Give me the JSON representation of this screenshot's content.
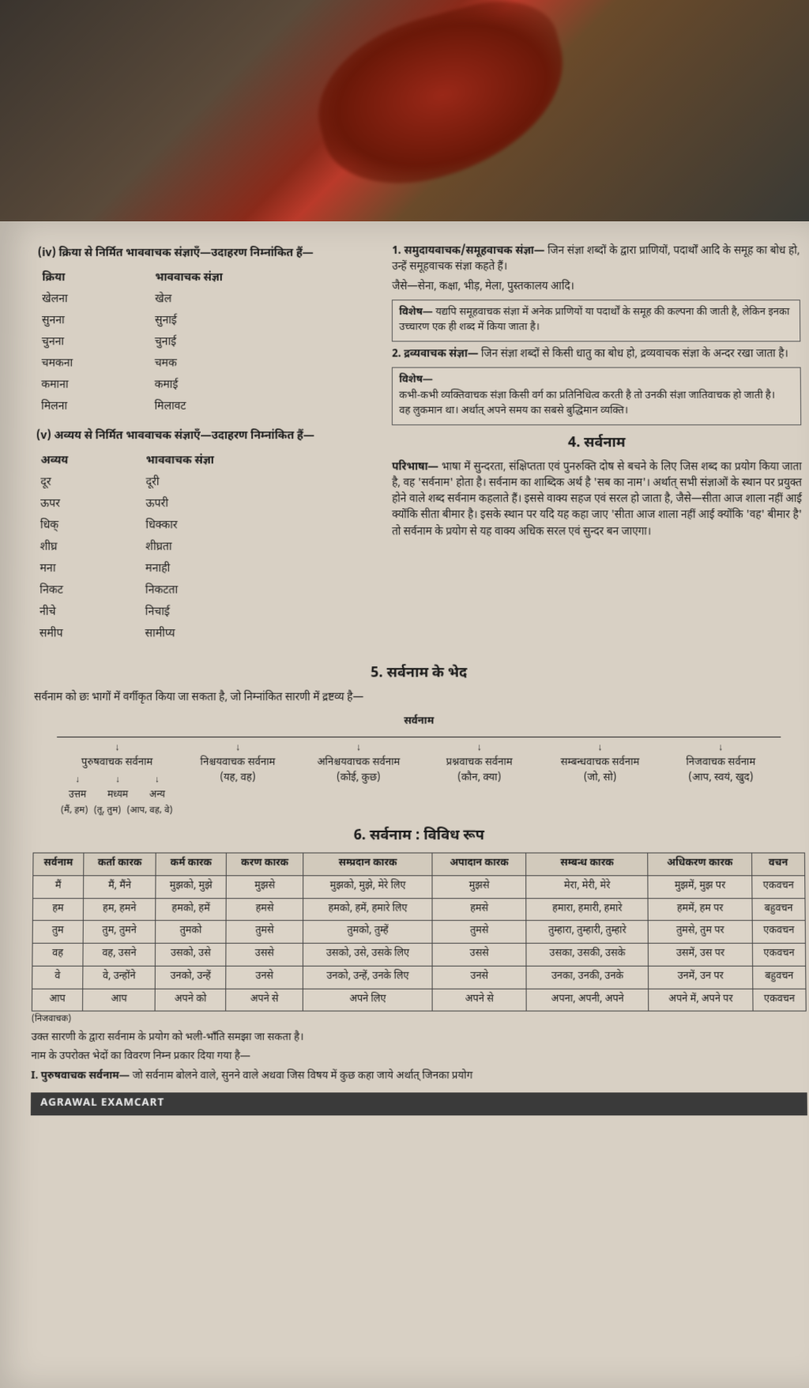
{
  "section_iv": {
    "heading": "(iv) क्रिया से निर्मित भाववाचक संज्ञाएँ—उदाहरण निम्नांकित हैं—",
    "col1": "क्रिया",
    "col2": "भाववाचक संज्ञा",
    "rows": [
      [
        "खेलना",
        "खेल"
      ],
      [
        "सुनना",
        "सुनाई"
      ],
      [
        "चुनना",
        "चुनाई"
      ],
      [
        "चमकना",
        "चमक"
      ],
      [
        "कमाना",
        "कमाई"
      ],
      [
        "मिलना",
        "मिलावट"
      ]
    ]
  },
  "section_v": {
    "heading": "(v) अव्यय से निर्मित भाववाचक संज्ञाएँ—उदाहरण निम्नांकित हैं—",
    "col1": "अव्यय",
    "col2": "भाववाचक संज्ञा",
    "rows": [
      [
        "दूर",
        "दूरी"
      ],
      [
        "ऊपर",
        "ऊपरी"
      ],
      [
        "धिक्",
        "धिक्कार"
      ],
      [
        "शीघ्र",
        "शीघ्रता"
      ],
      [
        "मना",
        "मनाही"
      ],
      [
        "निकट",
        "निकटता"
      ],
      [
        "नीचे",
        "निचाई"
      ],
      [
        "समीप",
        "सामीप्य"
      ]
    ]
  },
  "right": {
    "item1_head": "1. समुदायवाचक/समूहवाचक संज्ञा—",
    "item1_body": "जिन संज्ञा शब्दों के द्वारा प्राणियों, पदार्थों आदि के समूह का बोध हो, उन्हें समूहवाचक संज्ञा कहते हैं।",
    "item1_eg": "जैसे—सेना, कक्षा, भीड़, मेला, पुस्तकालय आदि।",
    "box1_head": "विशेष—",
    "box1_body": "यद्यपि समूहवाचक संज्ञा में अनेक प्राणियों या पदार्थों के समूह की कल्पना की जाती है, लेकिन इनका उच्चारण एक ही शब्द में किया जाता है।",
    "item2_head": "2. द्रव्यवाचक संज्ञा—",
    "item2_body": "जिन संज्ञा शब्दों से किसी धातु का बोध हो, द्रव्यवाचक संज्ञा के अन्दर रखा जाता है।",
    "box2_head": "विशेष—",
    "box2_body": "कभी-कभी व्यक्तिवाचक संज्ञा किसी वर्ग का प्रतिनिधित्व करती है तो उनकी संज्ञा जातिवाचक हो जाती है।",
    "box2_eg": "वह लुकमान था। अर्थात् अपने समय का सबसे बुद्धिमान व्यक्ति।",
    "sarvanam_head": "4. सर्वनाम",
    "sarvanam_def_label": "परिभाषा—",
    "sarvanam_def": "भाषा में सुन्दरता, संक्षिप्तता एवं पुनरुक्ति दोष से बचने के लिए जिस शब्द का प्रयोग किया जाता है, वह 'सर्वनाम' होता है। सर्वनाम का शाब्दिक अर्थ है 'सब का नाम'। अर्थात् सभी संज्ञाओं के स्थान पर प्रयुक्त होने वाले शब्द सर्वनाम कहलाते हैं। इससे वाक्य सहज एवं सरल हो जाता है, जैसे—सीता आज शाला नहीं आई क्योंकि सीता बीमार है। इसके स्थान पर यदि यह कहा जाए 'सीता आज शाला नहीं आई क्योंकि 'वह' बीमार है' तो सर्वनाम के प्रयोग से यह वाक्य अधिक सरल एवं सुन्दर बन जाएगा।"
  },
  "sec5": {
    "head": "5. सर्वनाम के भेद",
    "intro": "सर्वनाम को छः भागों में वर्गीकृत किया जा सकता है, जो निम्नांकित सारणी में द्रष्टव्य है—",
    "root": "सर्वनाम",
    "nodes": [
      "पुरुषवाचक सर्वनाम",
      "निश्चयवाचक सर्वनाम",
      "अनिश्चयवाचक सर्वनाम",
      "प्रश्नवाचक सर्वनाम",
      "सम्बन्धवाचक सर्वनाम",
      "निजवाचक सर्वनाम"
    ],
    "examples": [
      "",
      "(यह, वह)",
      "(कोई, कुछ)",
      "(कौन, क्या)",
      "(जो, सो)",
      "(आप, स्वयं, खुद)"
    ],
    "sub_nodes": [
      "उत्तम",
      "मध्यम",
      "अन्य"
    ],
    "sub_leaves": [
      "(मैं, हम)",
      "(तू, तुम)",
      "(आप, वह, वे)"
    ]
  },
  "sec6": {
    "head": "6. सर्वनाम : विविध रूप",
    "columns": [
      "सर्वनाम",
      "कर्ता कारक",
      "कर्म कारक",
      "करण कारक",
      "सम्प्रदान कारक",
      "अपादान कारक",
      "सम्बन्ध कारक",
      "अधिकरण कारक",
      "वचन"
    ],
    "rows": [
      [
        "मैं",
        "मैं, मैंने",
        "मुझको, मुझे",
        "मुझसे",
        "मुझको, मुझे, मेरे लिए",
        "मुझसे",
        "मेरा, मेरी, मेरे",
        "मुझमें, मुझ पर",
        "एकवचन"
      ],
      [
        "हम",
        "हम, हमने",
        "हमको, हमें",
        "हमसे",
        "हमको, हमें, हमारे लिए",
        "हमसे",
        "हमारा, हमारी, हमारे",
        "हममें, हम पर",
        "बहुवचन"
      ],
      [
        "तुम",
        "तुम, तुमने",
        "तुमको",
        "तुमसे",
        "तुमको, तुम्हें",
        "तुमसे",
        "तुम्हारा, तुम्हारी, तुम्हारे",
        "तुमसे, तुम पर",
        "एकवचन"
      ],
      [
        "वह",
        "वह, उसने",
        "उसको, उसे",
        "उससे",
        "उसको, उसे, उसके लिए",
        "उससे",
        "उसका, उसकी, उसके",
        "उसमें, उस पर",
        "एकवचन"
      ],
      [
        "वे",
        "वे, उन्होंने",
        "उनको, उन्हें",
        "उनसे",
        "उनको, उन्हें, उनके लिए",
        "उनसे",
        "उनका, उनकी, उनके",
        "उनमें, उन पर",
        "बहुवचन"
      ],
      [
        "आप",
        "आप",
        "अपने को",
        "अपने से",
        "अपने लिए",
        "अपने से",
        "अपना, अपनी, अपने",
        "अपने में, अपने पर",
        "एकवचन"
      ]
    ],
    "last_row_label": "(निजवाचक)"
  },
  "trail1": "उक्त सारणी के द्वारा सर्वनाम के प्रयोग को भली-भाँति समझा जा सकता है।",
  "trail2": "नाम के उपरोक्त भेदों का विवरण निम्न प्रकार दिया गया है—",
  "trail3_head": "I. पुरुषवाचक सर्वनाम—",
  "trail3_body": "जो सर्वनाम बोलने वाले, सुनने वाले अथवा जिस विषय में कुछ कहा जाये अर्थात् जिनका प्रयोग",
  "footer": "AGRAWAL EXAMCART"
}
